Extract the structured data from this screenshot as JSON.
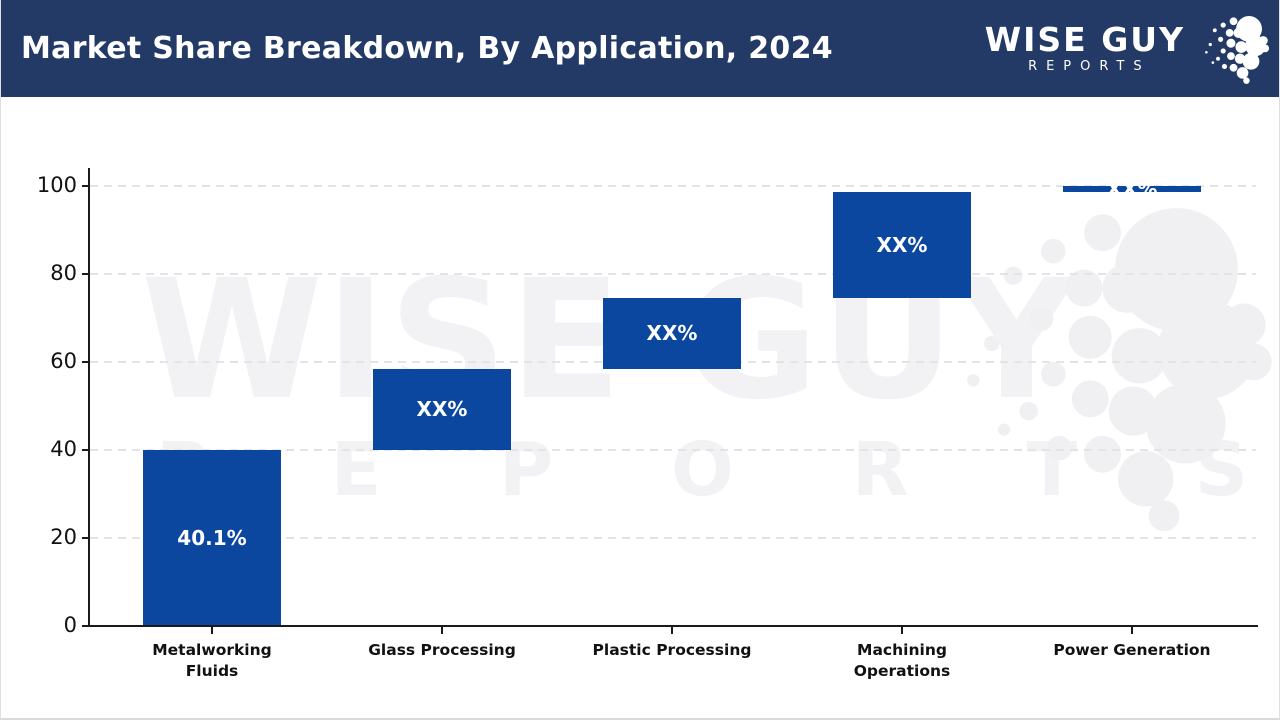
{
  "header": {
    "title": "Market Share Breakdown, By Application, 2024",
    "background_color": "#233a66",
    "brand": {
      "line1": "WISE GUY",
      "line2": "REPORTS"
    }
  },
  "watermark": {
    "line1": "WISE GUY",
    "line2": "R E P O R T S"
  },
  "chart_data": {
    "type": "bar",
    "subtype": "waterfall",
    "title": "Market Share Breakdown, By Application, 2024",
    "categories": [
      "Metalworking Fluids",
      "Glass Processing",
      "Plastic Processing",
      "Machining Operations",
      "Power Generation"
    ],
    "category_lines": [
      [
        "Metalworking",
        "Fluids"
      ],
      [
        "Glass Processing"
      ],
      [
        "Plastic Processing"
      ],
      [
        "Machining",
        "Operations"
      ],
      [
        "Power Generation"
      ]
    ],
    "segments": [
      {
        "start": 0,
        "end": 40.1,
        "value": 40.1,
        "label": "40.1%"
      },
      {
        "start": 40.1,
        "end": 58.5,
        "value": 18.4,
        "label": "XX%"
      },
      {
        "start": 58.5,
        "end": 74.5,
        "value": 16.0,
        "label": "XX%"
      },
      {
        "start": 74.5,
        "end": 98.6,
        "value": 24.1,
        "label": "XX%"
      },
      {
        "start": 98.6,
        "end": 100.0,
        "value": 1.4,
        "label": "XX%"
      }
    ],
    "xlabel": "",
    "ylabel": "",
    "ylim": [
      0,
      100
    ],
    "yticks": [
      0,
      20,
      40,
      60,
      80,
      100
    ],
    "grid": {
      "horizontal": true,
      "style": "dashed",
      "color": "#e4e4e7"
    },
    "legend": null,
    "bar_color": "#0c479f",
    "bar_label_color": "#ffffff",
    "axis_color": "#1a1a1a"
  }
}
